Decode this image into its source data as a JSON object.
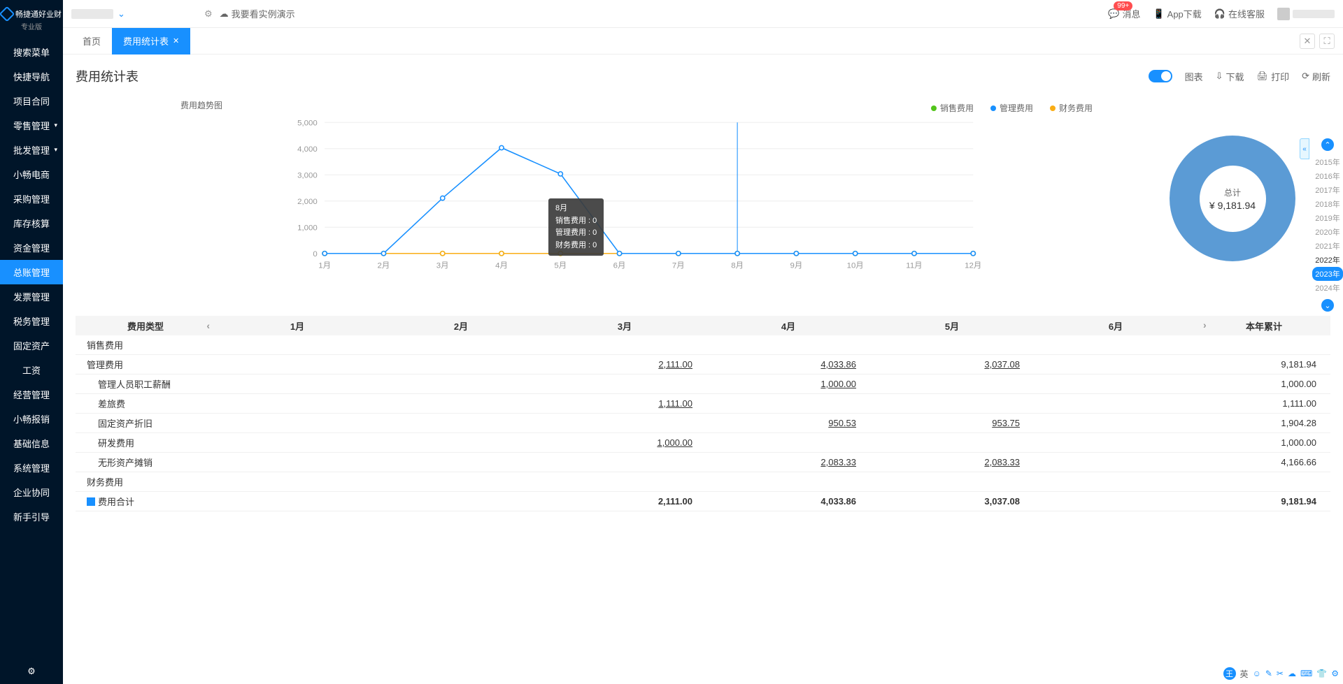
{
  "brand": {
    "name": "畅捷通好业财",
    "edition": "专业版"
  },
  "topbar": {
    "demo": "我要看实例演示",
    "messages": "消息",
    "badge": "99+",
    "download": "App下载",
    "support": "在线客服"
  },
  "tabs": {
    "home": "首页",
    "active": "费用统计表"
  },
  "sidebar": [
    {
      "label": "搜索菜单"
    },
    {
      "label": "快捷导航"
    },
    {
      "label": "项目合同"
    },
    {
      "label": "零售管理",
      "caret": true
    },
    {
      "label": "批发管理",
      "caret": true
    },
    {
      "label": "小畅电商"
    },
    {
      "label": "采购管理"
    },
    {
      "label": "库存核算"
    },
    {
      "label": "资金管理"
    },
    {
      "label": "总账管理",
      "active": true
    },
    {
      "label": "发票管理"
    },
    {
      "label": "税务管理"
    },
    {
      "label": "固定资产"
    },
    {
      "label": "工资"
    },
    {
      "label": "经营管理"
    },
    {
      "label": "小畅报销"
    },
    {
      "label": "基础信息"
    },
    {
      "label": "系统管理"
    },
    {
      "label": "企业协同"
    },
    {
      "label": "新手引导"
    }
  ],
  "page": {
    "title": "费用统计表",
    "actions": {
      "chart": "图表",
      "download": "下载",
      "print": "打印",
      "refresh": "刷新"
    }
  },
  "lineChart": {
    "title": "费用趋势图",
    "legend": [
      {
        "label": "销售费用",
        "color": "#52c41a"
      },
      {
        "label": "管理费用",
        "color": "#1890ff"
      },
      {
        "label": "财务费用",
        "color": "#faad14"
      }
    ],
    "yticks": [
      "5,000",
      "4,000",
      "3,000",
      "2,000",
      "1,000",
      "0"
    ],
    "ymax": 5000,
    "xlabels": [
      "1月",
      "2月",
      "3月",
      "4月",
      "5月",
      "6月",
      "7月",
      "8月",
      "9月",
      "10月",
      "11月",
      "12月"
    ],
    "series": {
      "sales": [
        0,
        0,
        0,
        0,
        0,
        0,
        0,
        0,
        0,
        0,
        0,
        0
      ],
      "mgmt": [
        0,
        0,
        2111,
        4034,
        3037,
        0,
        0,
        0,
        0,
        0,
        0,
        0
      ],
      "fin": [
        0,
        0,
        0,
        0,
        0,
        0,
        0,
        0,
        0,
        0,
        0,
        0
      ]
    },
    "tooltip": {
      "month": "8月",
      "rows": [
        {
          "k": "销售费用",
          "v": "0"
        },
        {
          "k": "管理费用",
          "v": "0"
        },
        {
          "k": "财务费用",
          "v": "0"
        }
      ]
    }
  },
  "donut": {
    "label": "总计",
    "value": "¥ 9,181.94",
    "color": "#5b9bd5"
  },
  "yearRail": [
    "2015年",
    "2016年",
    "2017年",
    "2018年",
    "2019年",
    "2020年",
    "2021年",
    "2022年",
    "2023年",
    "2024年"
  ],
  "yearRailSelected": "2023年",
  "yearRailDark": "2022年",
  "table": {
    "headers": {
      "type": "费用类型",
      "months": [
        "1月",
        "2月",
        "3月",
        "4月",
        "5月",
        "6月"
      ],
      "total": "本年累计"
    },
    "rows": [
      {
        "label": "销售费用",
        "indent": 0,
        "vals": [
          "",
          "",
          "",
          "",
          "",
          ""
        ],
        "total": ""
      },
      {
        "label": "管理费用",
        "indent": 0,
        "vals": [
          "",
          "",
          "2,111.00",
          "4,033.86",
          "3,037.08",
          ""
        ],
        "total": "9,181.94",
        "link": true
      },
      {
        "label": "管理人员职工薪酬",
        "indent": 1,
        "vals": [
          "",
          "",
          "",
          "1,000.00",
          "",
          ""
        ],
        "total": "1,000.00",
        "link": true
      },
      {
        "label": "差旅费",
        "indent": 1,
        "vals": [
          "",
          "",
          "1,111.00",
          "",
          "",
          ""
        ],
        "total": "1,111.00",
        "link": true
      },
      {
        "label": "固定资产折旧",
        "indent": 1,
        "vals": [
          "",
          "",
          "",
          "950.53",
          "953.75",
          ""
        ],
        "total": "1,904.28",
        "link": true
      },
      {
        "label": "研发费用",
        "indent": 1,
        "vals": [
          "",
          "",
          "1,000.00",
          "",
          "",
          ""
        ],
        "total": "1,000.00",
        "link": true
      },
      {
        "label": "无形资产摊销",
        "indent": 1,
        "vals": [
          "",
          "",
          "",
          "2,083.33",
          "2,083.33",
          ""
        ],
        "total": "4,166.66",
        "link": true
      },
      {
        "label": "财务费用",
        "indent": 0,
        "vals": [
          "",
          "",
          "",
          "",
          "",
          ""
        ],
        "total": ""
      }
    ],
    "totalRow": {
      "label": "费用合计",
      "vals": [
        "",
        "",
        "2,111.00",
        "4,033.86",
        "3,037.08",
        ""
      ],
      "total": "9,181.94"
    }
  },
  "ime": {
    "label": "英",
    "brand": "王"
  }
}
